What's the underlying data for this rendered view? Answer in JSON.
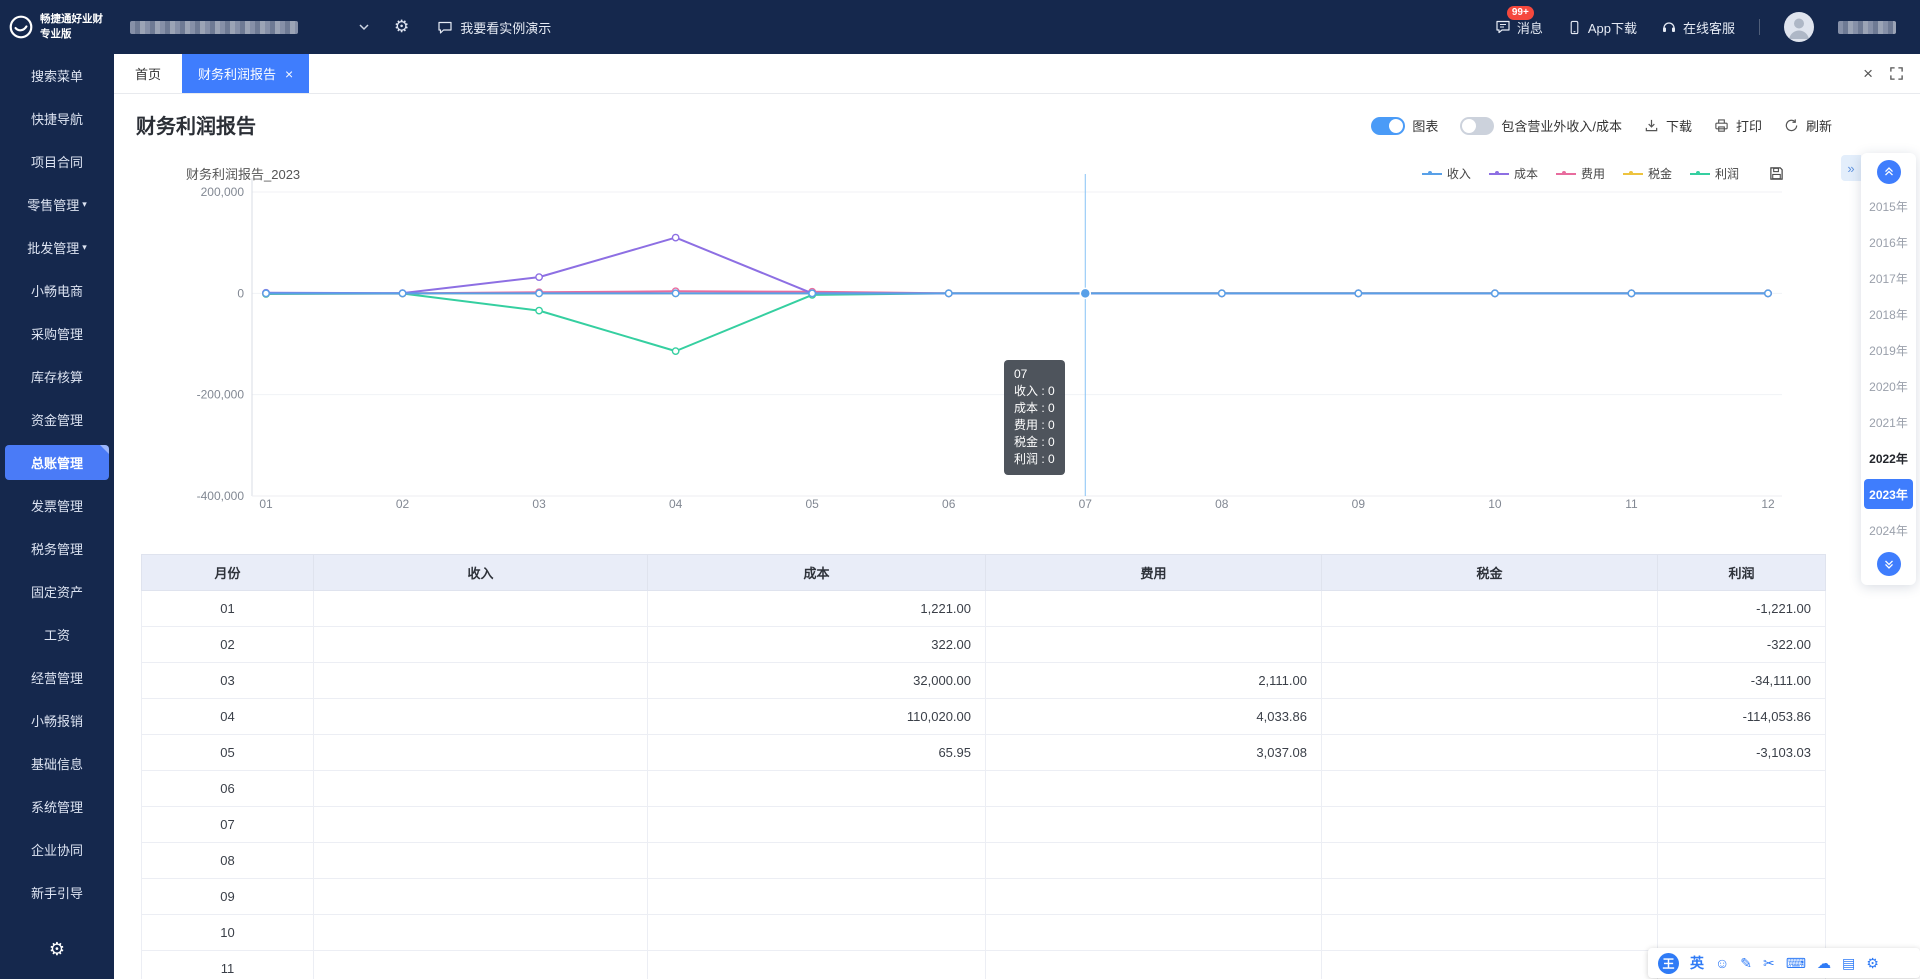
{
  "colors": {
    "sidebar_bg": "#15284d",
    "accent": "#3f7dfd",
    "active_item": "#4a7bf7",
    "badge_red": "#f5483d",
    "table_header_bg": "#e9edf8",
    "tooltip_bg": "#363c46"
  },
  "app": {
    "logo_title": "畅捷通好业财",
    "logo_subtitle": "专业版"
  },
  "sidebar": {
    "items": [
      {
        "label": "搜索菜单"
      },
      {
        "label": "快捷导航"
      },
      {
        "label": "项目合同"
      },
      {
        "label": "零售管理",
        "arrow": true
      },
      {
        "label": "批发管理",
        "arrow": true
      },
      {
        "label": "小畅电商"
      },
      {
        "label": "采购管理"
      },
      {
        "label": "库存核算"
      },
      {
        "label": "资金管理"
      },
      {
        "label": "总账管理",
        "active": true
      },
      {
        "label": "发票管理"
      },
      {
        "label": "税务管理"
      },
      {
        "label": "固定资产"
      },
      {
        "label": "工资"
      },
      {
        "label": "经营管理"
      },
      {
        "label": "小畅报销"
      },
      {
        "label": "基础信息"
      },
      {
        "label": "系统管理"
      },
      {
        "label": "企业协同"
      },
      {
        "label": "新手引导"
      }
    ]
  },
  "topbar": {
    "demo_link": "我要看实例演示",
    "messages_label": "消息",
    "messages_badge": "99+",
    "app_download_label": "App下载",
    "support_label": "在线客服"
  },
  "tabs": {
    "home": "首页",
    "report": "财务利润报告"
  },
  "glyphs": {
    "gear": "⚙",
    "chevron_down": "▾",
    "collapse": "»",
    "close": "×"
  },
  "page": {
    "title": "财务利润报告",
    "toggle_chart_label": "图表",
    "toggle_nonoperating_label": "包含营业外收入/成本",
    "download_label": "下载",
    "print_label": "打印",
    "refresh_label": "刷新"
  },
  "chart_data": {
    "type": "line",
    "title": "财务利润报告_2023",
    "x": [
      "01",
      "02",
      "03",
      "04",
      "05",
      "06",
      "07",
      "08",
      "09",
      "10",
      "11",
      "12"
    ],
    "ylim": [
      -400000,
      200000
    ],
    "yticks": [
      200000,
      0,
      -200000,
      -400000
    ],
    "ytick_labels": [
      "200,000",
      "0",
      "-200,000",
      "-400,000"
    ],
    "legend_position": "top-right",
    "grid": false,
    "series": [
      {
        "name": "收入",
        "color": "#58a0e8",
        "values": [
          0,
          0,
          0,
          0,
          0,
          0,
          0,
          0,
          0,
          0,
          0,
          0
        ]
      },
      {
        "name": "成本",
        "color": "#8d6fe3",
        "values": [
          1221,
          322,
          32000,
          110020,
          65.95,
          0,
          0,
          0,
          0,
          0,
          0,
          0
        ]
      },
      {
        "name": "费用",
        "color": "#e86c9e",
        "values": [
          0,
          0,
          2111,
          4033.86,
          3037.08,
          0,
          0,
          0,
          0,
          0,
          0,
          0
        ]
      },
      {
        "name": "税金",
        "color": "#edc33e",
        "values": [
          0,
          0,
          0,
          0,
          0,
          0,
          0,
          0,
          0,
          0,
          0,
          0
        ]
      },
      {
        "name": "利润",
        "color": "#35cfa0",
        "values": [
          -1221,
          -322,
          -34111,
          -114053.86,
          -3103.03,
          0,
          0,
          0,
          0,
          0,
          0,
          0
        ]
      }
    ],
    "crosshair_index": 6,
    "tooltip_lines": [
      "07",
      "收入 : 0",
      "成本 : 0",
      "费用 : 0",
      "税金 : 0",
      "利润 : 0"
    ]
  },
  "table": {
    "headers": [
      "月份",
      "收入",
      "成本",
      "费用",
      "税金",
      "利润"
    ],
    "rows": [
      [
        "01",
        "",
        "1,221.00",
        "",
        "",
        "-1,221.00"
      ],
      [
        "02",
        "",
        "322.00",
        "",
        "",
        "-322.00"
      ],
      [
        "03",
        "",
        "32,000.00",
        "2,111.00",
        "",
        "-34,111.00"
      ],
      [
        "04",
        "",
        "110,020.00",
        "4,033.86",
        "",
        "-114,053.86"
      ],
      [
        "05",
        "",
        "65.95",
        "3,037.08",
        "",
        "-3,103.03"
      ],
      [
        "06",
        "",
        "",
        "",
        "",
        ""
      ],
      [
        "07",
        "",
        "",
        "",
        "",
        ""
      ],
      [
        "08",
        "",
        "",
        "",
        "",
        ""
      ],
      [
        "09",
        "",
        "",
        "",
        "",
        ""
      ],
      [
        "10",
        "",
        "",
        "",
        "",
        ""
      ],
      [
        "11",
        "",
        "",
        "",
        "",
        ""
      ]
    ]
  },
  "years": {
    "items": [
      {
        "label": "2015年"
      },
      {
        "label": "2016年"
      },
      {
        "label": "2017年"
      },
      {
        "label": "2018年"
      },
      {
        "label": "2019年"
      },
      {
        "label": "2020年"
      },
      {
        "label": "2021年"
      },
      {
        "label": "2022年",
        "bold": true
      },
      {
        "label": "2023年",
        "active": true
      },
      {
        "label": "2024年"
      }
    ]
  },
  "ime": {
    "logo_text": "王",
    "mode_label": "英",
    "icons": [
      {
        "glyph": "☺"
      },
      {
        "glyph": "✎"
      },
      {
        "glyph": "✂"
      },
      {
        "glyph": "⌨"
      },
      {
        "glyph": "☁"
      },
      {
        "glyph": "▤"
      },
      {
        "glyph": "⚙"
      }
    ]
  }
}
